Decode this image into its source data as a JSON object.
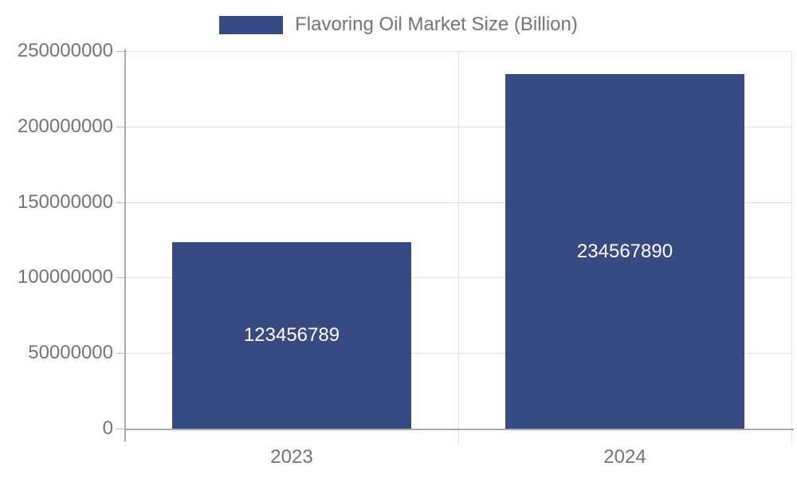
{
  "chart_data": {
    "type": "bar",
    "title": "Flavoring Oil Market Size (Billion)",
    "legend": [
      "Flavoring Oil Market Size (Billion)"
    ],
    "legend_position": "top-center",
    "categories": [
      "2023",
      "2024"
    ],
    "series": [
      {
        "name": "Flavoring Oil Market Size (Billion)",
        "values": [
          123456789,
          234567890
        ]
      }
    ],
    "bar_value_labels": [
      "123456789",
      "234567890"
    ],
    "xlabel": "",
    "ylabel": "",
    "ylim": [
      0,
      250000000
    ],
    "y_tick_interval": 50000000,
    "y_tick_values": [
      0,
      50000000,
      100000000,
      150000000,
      200000000,
      250000000
    ],
    "y_tick_labels": [
      "0",
      "50000000",
      "100000000",
      "150000000",
      "200000000",
      "250000000"
    ],
    "grid": true,
    "colors": {
      "bar": "#374A83",
      "bar_value_text": "#FFFFFF",
      "legend_text": "#757575",
      "axis_text": "#71757A",
      "grid_line": "#E3E3E3",
      "axis_line": "#A9A9A9",
      "tick_line": "#B9B9B9",
      "background": "#FFFFFF"
    }
  }
}
